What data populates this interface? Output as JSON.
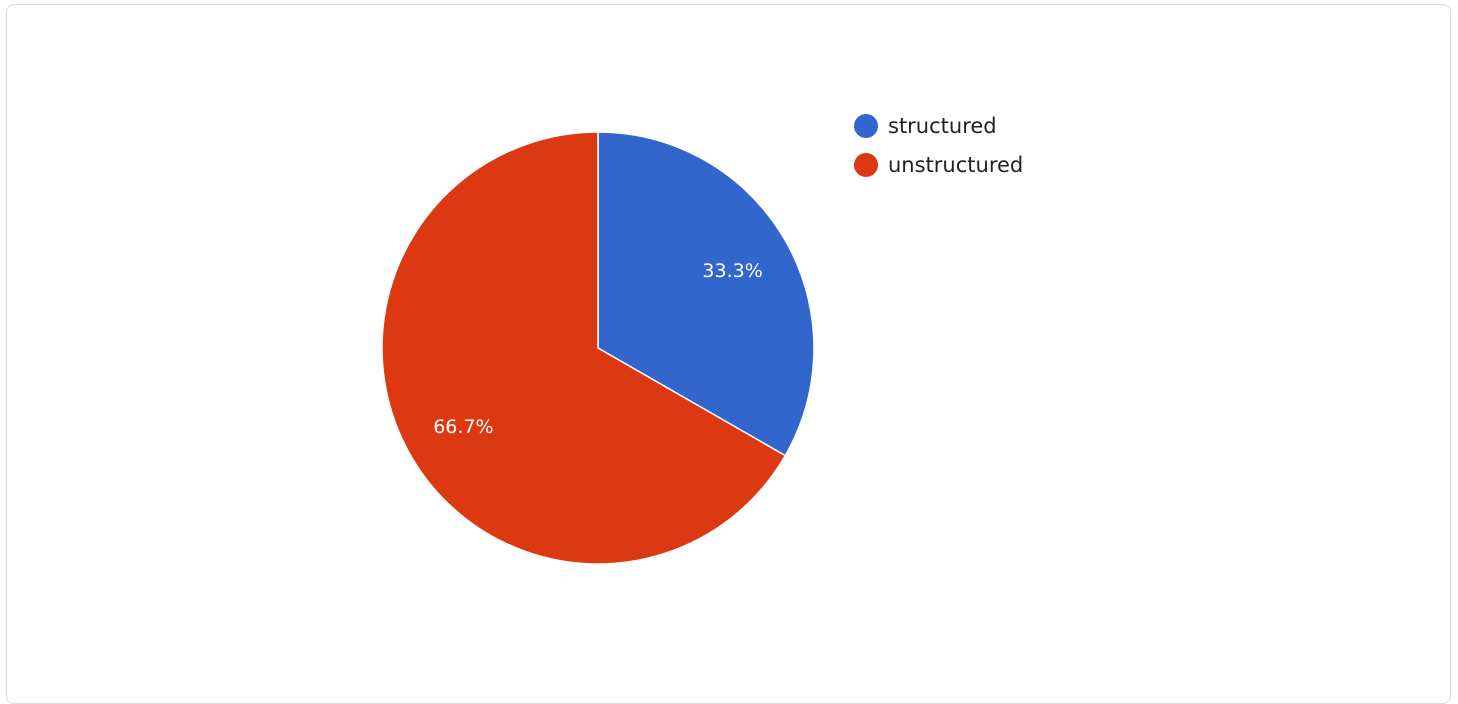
{
  "chart_data": {
    "type": "pie",
    "categories": [
      "structured",
      "unstructured"
    ],
    "values": [
      33.3,
      66.7
    ],
    "labels": [
      "33.3%",
      "66.7%"
    ],
    "colors": [
      "#3366cc",
      "#dc3912"
    ],
    "title": "",
    "legend_position": "right",
    "start_angle": "top, clockwise"
  }
}
